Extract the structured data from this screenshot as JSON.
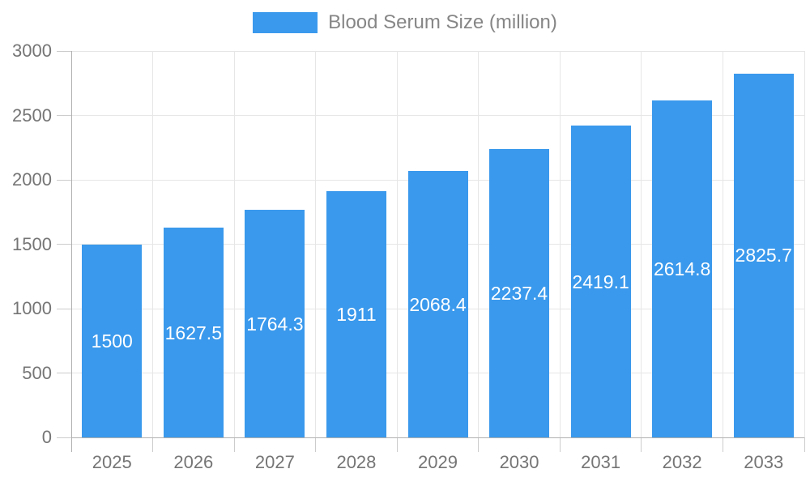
{
  "chart_data": {
    "type": "bar",
    "title": "",
    "legend": {
      "label": "Blood Serum Size (million)",
      "position": "top-center"
    },
    "categories": [
      "2025",
      "2026",
      "2027",
      "2028",
      "2029",
      "2030",
      "2031",
      "2032",
      "2033"
    ],
    "series": [
      {
        "name": "Blood Serum Size (million)",
        "values": [
          1500,
          1627.5,
          1764.3,
          1911,
          2068.4,
          2237.4,
          2419.1,
          2614.8,
          2825.7
        ],
        "value_labels": [
          "1500",
          "1627.5",
          "1764.3",
          "1911",
          "2068.4",
          "2237.4",
          "2419.1",
          "2614.8",
          "2825.7"
        ]
      }
    ],
    "xlabel": "",
    "ylabel": "",
    "ylim": [
      0,
      3000
    ],
    "yticks": [
      0,
      500,
      1000,
      1500,
      2000,
      2500,
      3000
    ],
    "grid": true,
    "value_label_position": "inside-center",
    "colors": {
      "bar": "#3a99ec",
      "grid": "#e6e6e6",
      "tick": "#cccccc",
      "axis": "#b0b0b0",
      "label_text": "#757575",
      "value_text": "#ffffff"
    }
  }
}
